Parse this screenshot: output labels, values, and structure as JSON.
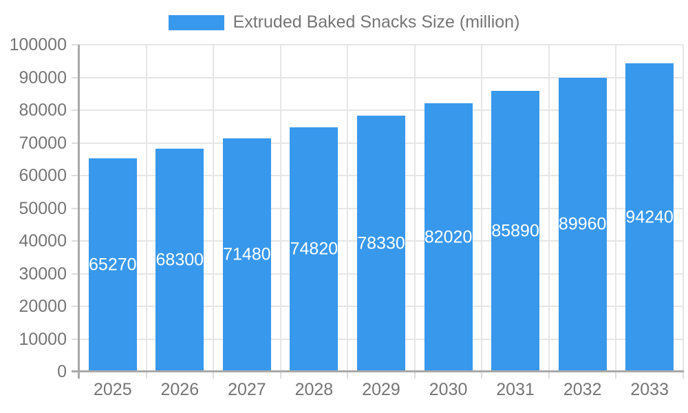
{
  "legend": {
    "items": [
      {
        "label": "Extruded Baked Snacks Size (million)",
        "swatch_color": "#3898EC"
      }
    ]
  },
  "chart_data": {
    "type": "bar",
    "title": "Extruded Baked Snacks Size (million)",
    "series_name": "Extruded Baked Snacks Size (million)",
    "categories": [
      "2025",
      "2026",
      "2027",
      "2028",
      "2029",
      "2030",
      "2031",
      "2032",
      "2033"
    ],
    "values": [
      65270,
      68300,
      71480,
      74820,
      78330,
      82020,
      85890,
      89960,
      94240
    ],
    "xlabel": "",
    "ylabel": "",
    "ylim": [
      0,
      100000
    ],
    "yticks": [
      0,
      10000,
      20000,
      30000,
      40000,
      50000,
      60000,
      70000,
      80000,
      90000,
      100000
    ],
    "grid": true,
    "legend_position": "top",
    "value_labels_position": "inside-middle",
    "colors": {
      "bar": "#3898EC",
      "value_label": "#FFFFFF",
      "grid": "#E6E6E6",
      "axis": "#A9A9A9",
      "tick": "#DCDCDC",
      "text": "#757575",
      "background": "#FFFFFF"
    }
  }
}
